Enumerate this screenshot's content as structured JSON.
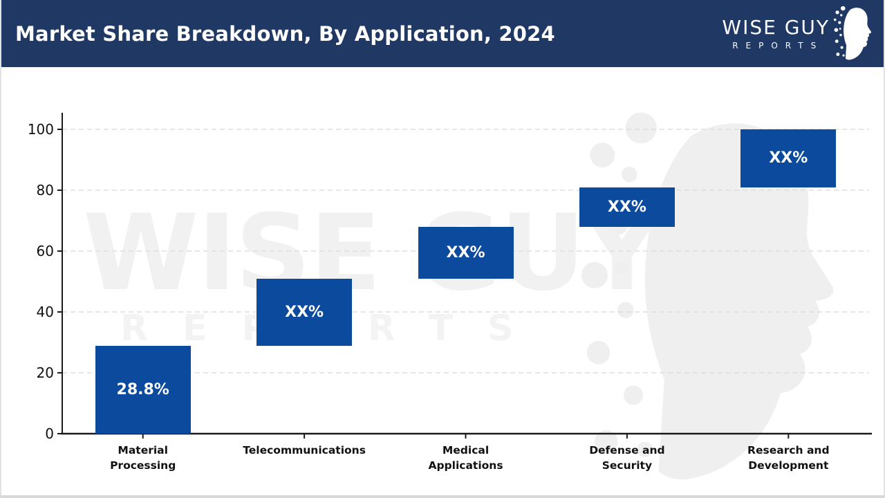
{
  "header": {
    "title": "Market Share Breakdown, By Application, 2024",
    "logo": {
      "line1": "WISE GUY",
      "line2": "REPORTS"
    },
    "bg_color": "#203864"
  },
  "watermark": {
    "line1": "WISE GUY",
    "line2": "REPORTS"
  },
  "chart_data": {
    "type": "bar",
    "subtype": "waterfall",
    "title": "Market Share Breakdown, By Application, 2024",
    "categories": [
      "Material\nProcessing",
      "Telecommunications",
      "Medical\nApplications",
      "Defense and\nSecurity",
      "Research and\nDevelopment"
    ],
    "bars": [
      {
        "category": "Material Processing",
        "start": 0,
        "end": 28.8,
        "label": "28.8%"
      },
      {
        "category": "Telecommunications",
        "start": 28.8,
        "end": 51.0,
        "label": "XX%"
      },
      {
        "category": "Medical Applications",
        "start": 51.0,
        "end": 67.9,
        "label": "XX%"
      },
      {
        "category": "Defense and Security",
        "start": 67.9,
        "end": 81.0,
        "label": "XX%"
      },
      {
        "category": "Research and Development",
        "start": 81.0,
        "end": 100.0,
        "label": "XX%"
      }
    ],
    "xlabel": "",
    "ylabel": "",
    "yticks": [
      0,
      20,
      40,
      60,
      80,
      100
    ],
    "ylim": [
      0,
      105
    ],
    "grid": "horizontal-dashed",
    "legend": "none",
    "bar_color": "#0c4a9e",
    "bar_label_color": "#ffffff",
    "axis_color": "#1a1a1a",
    "grid_color": "#dedede"
  }
}
